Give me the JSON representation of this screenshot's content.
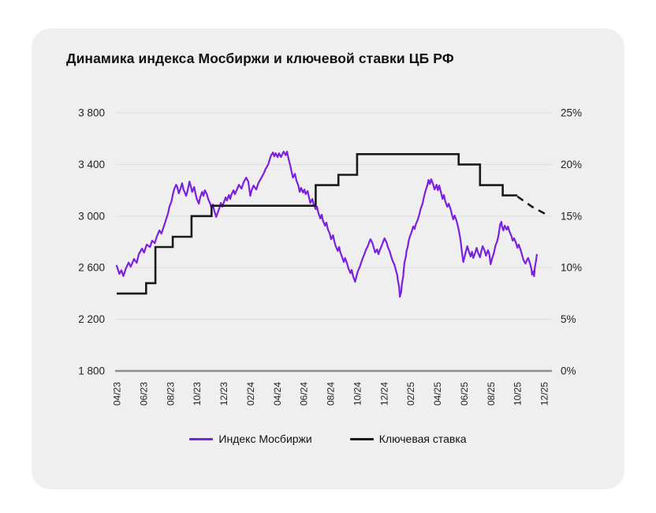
{
  "card": {
    "title": "Динамика индекса Мосбиржи и ключевой ставки ЦБ РФ"
  },
  "legend": {
    "items": [
      {
        "label": "Индекс Мосбиржи",
        "color": "#7B1FE0"
      },
      {
        "label": "Ключевая ставка",
        "color": "#1A1A1A"
      }
    ]
  },
  "colors": {
    "card_bg": "#EFEFEF",
    "grid": "#E0E0E0",
    "axis_line": "#8F8F8F",
    "tick_text": "#222222",
    "moex_line": "#7B1FE0",
    "rate_line": "#1A1A1A"
  },
  "chart_data": {
    "type": "line",
    "title": "Динамика индекса Мосбиржи и ключевой ставки ЦБ РФ",
    "grid": true,
    "legend_position": "bottom",
    "x_axis": {
      "unit": "months_from_2023-04",
      "range": [
        0,
        32
      ],
      "ticks": [
        {
          "m": 0,
          "label": "04/23"
        },
        {
          "m": 2,
          "label": "06/23"
        },
        {
          "m": 4,
          "label": "08/23"
        },
        {
          "m": 6,
          "label": "10/23"
        },
        {
          "m": 8,
          "label": "12/23"
        },
        {
          "m": 10,
          "label": "02/24"
        },
        {
          "m": 12,
          "label": "04/24"
        },
        {
          "m": 14,
          "label": "06/24"
        },
        {
          "m": 16,
          "label": "08/24"
        },
        {
          "m": 18,
          "label": "10/24"
        },
        {
          "m": 20,
          "label": "12/24"
        },
        {
          "m": 22,
          "label": "02/25"
        },
        {
          "m": 24,
          "label": "04/25"
        },
        {
          "m": 26,
          "label": "06/25"
        },
        {
          "m": 28,
          "label": "08/25"
        },
        {
          "m": 30,
          "label": "10/25"
        },
        {
          "m": 32,
          "label": "12/25"
        }
      ]
    },
    "left_axis": {
      "series": "Индекс Мосбиржи",
      "range": [
        1800,
        3800
      ],
      "ticks": [
        {
          "v": 3800,
          "label": "3 800"
        },
        {
          "v": 3400,
          "label": "3 400"
        },
        {
          "v": 3000,
          "label": "3 000"
        },
        {
          "v": 2600,
          "label": "2 600"
        },
        {
          "v": 2200,
          "label": "2 200"
        },
        {
          "v": 1800,
          "label": "1 800"
        }
      ]
    },
    "right_axis": {
      "series": "Ключевая ставка",
      "range": [
        0,
        25
      ],
      "ticks": [
        {
          "v": 25,
          "label": "25%"
        },
        {
          "v": 20,
          "label": "20%"
        },
        {
          "v": 15,
          "label": "15%"
        },
        {
          "v": 10,
          "label": "10%"
        },
        {
          "v": 5,
          "label": "5%"
        },
        {
          "v": 0,
          "label": "0%"
        }
      ]
    },
    "series": [
      {
        "name": "Индекс Мосбиржи",
        "axis": "left",
        "style": "line",
        "color": "#7B1FE0",
        "points": [
          [
            0,
            2615
          ],
          [
            0.2,
            2552
          ],
          [
            0.35,
            2580
          ],
          [
            0.5,
            2535
          ],
          [
            0.7,
            2598
          ],
          [
            0.9,
            2640
          ],
          [
            1.05,
            2608
          ],
          [
            1.3,
            2668
          ],
          [
            1.5,
            2638
          ],
          [
            1.65,
            2705
          ],
          [
            1.9,
            2748
          ],
          [
            2.05,
            2717
          ],
          [
            2.25,
            2779
          ],
          [
            2.5,
            2760
          ],
          [
            2.65,
            2809
          ],
          [
            2.85,
            2790
          ],
          [
            3,
            2840
          ],
          [
            3.2,
            2889
          ],
          [
            3.35,
            2864
          ],
          [
            3.55,
            2926
          ],
          [
            3.7,
            2975
          ],
          [
            3.85,
            3023
          ],
          [
            3.95,
            3072
          ],
          [
            4.1,
            3115
          ],
          [
            4.2,
            3164
          ],
          [
            4.3,
            3206
          ],
          [
            4.45,
            3243
          ],
          [
            4.55,
            3219
          ],
          [
            4.65,
            3176
          ],
          [
            4.8,
            3219
          ],
          [
            4.9,
            3255
          ],
          [
            5,
            3206
          ],
          [
            5.2,
            3157
          ],
          [
            5.3,
            3194
          ],
          [
            5.45,
            3268
          ],
          [
            5.55,
            3231
          ],
          [
            5.65,
            3188
          ],
          [
            5.8,
            3225
          ],
          [
            5.9,
            3176
          ],
          [
            6,
            3133
          ],
          [
            6.15,
            3096
          ],
          [
            6.25,
            3145
          ],
          [
            6.4,
            3188
          ],
          [
            6.5,
            3157
          ],
          [
            6.6,
            3200
          ],
          [
            6.75,
            3170
          ],
          [
            6.85,
            3133
          ],
          [
            7,
            3096
          ],
          [
            7.1,
            3060
          ],
          [
            7.2,
            3090
          ],
          [
            7.3,
            3041
          ],
          [
            7.45,
            2993
          ],
          [
            7.55,
            3023
          ],
          [
            7.7,
            3066
          ],
          [
            7.8,
            3102
          ],
          [
            7.9,
            3072
          ],
          [
            8.05,
            3115
          ],
          [
            8.15,
            3145
          ],
          [
            8.25,
            3121
          ],
          [
            8.4,
            3164
          ],
          [
            8.5,
            3133
          ],
          [
            8.6,
            3170
          ],
          [
            8.75,
            3200
          ],
          [
            8.85,
            3170
          ],
          [
            9,
            3206
          ],
          [
            9.15,
            3243
          ],
          [
            9.35,
            3212
          ],
          [
            9.5,
            3261
          ],
          [
            9.7,
            3298
          ],
          [
            9.85,
            3267
          ],
          [
            10,
            3157
          ],
          [
            10.1,
            3200
          ],
          [
            10.25,
            3237
          ],
          [
            10.45,
            3206
          ],
          [
            10.6,
            3255
          ],
          [
            10.8,
            3292
          ],
          [
            11,
            3328
          ],
          [
            11.15,
            3365
          ],
          [
            11.35,
            3402
          ],
          [
            11.45,
            3438
          ],
          [
            11.55,
            3469
          ],
          [
            11.7,
            3493
          ],
          [
            11.8,
            3463
          ],
          [
            11.9,
            3487
          ],
          [
            12.05,
            3457
          ],
          [
            12.15,
            3487
          ],
          [
            12.3,
            3457
          ],
          [
            12.4,
            3481
          ],
          [
            12.5,
            3500
          ],
          [
            12.65,
            3472
          ],
          [
            12.75,
            3500
          ],
          [
            12.85,
            3451
          ],
          [
            13,
            3390
          ],
          [
            13.1,
            3341
          ],
          [
            13.2,
            3298
          ],
          [
            13.35,
            3328
          ],
          [
            13.45,
            3279
          ],
          [
            13.6,
            3237
          ],
          [
            13.7,
            3188
          ],
          [
            13.8,
            3219
          ],
          [
            13.95,
            3182
          ],
          [
            14.05,
            3206
          ],
          [
            14.15,
            3170
          ],
          [
            14.3,
            3194
          ],
          [
            14.4,
            3145
          ],
          [
            14.5,
            3102
          ],
          [
            14.65,
            3133
          ],
          [
            14.75,
            3090
          ],
          [
            14.9,
            3054
          ],
          [
            15,
            3072
          ],
          [
            15.1,
            3023
          ],
          [
            15.25,
            2981
          ],
          [
            15.35,
            3011
          ],
          [
            15.45,
            2962
          ],
          [
            15.6,
            2926
          ],
          [
            15.7,
            2950
          ],
          [
            15.8,
            2901
          ],
          [
            15.95,
            2864
          ],
          [
            16.05,
            2821
          ],
          [
            16.2,
            2852
          ],
          [
            16.3,
            2803
          ],
          [
            16.4,
            2767
          ],
          [
            16.55,
            2730
          ],
          [
            16.65,
            2761
          ],
          [
            16.75,
            2718
          ],
          [
            16.9,
            2675
          ],
          [
            17,
            2644
          ],
          [
            17.1,
            2675
          ],
          [
            17.25,
            2632
          ],
          [
            17.35,
            2595
          ],
          [
            17.5,
            2558
          ],
          [
            17.6,
            2583
          ],
          [
            17.7,
            2534
          ],
          [
            17.85,
            2491
          ],
          [
            17.95,
            2534
          ],
          [
            18.05,
            2571
          ],
          [
            18.2,
            2607
          ],
          [
            18.3,
            2638
          ],
          [
            18.4,
            2668
          ],
          [
            18.55,
            2705
          ],
          [
            18.65,
            2736
          ],
          [
            18.8,
            2767
          ],
          [
            18.9,
            2797
          ],
          [
            19,
            2821
          ],
          [
            19.15,
            2791
          ],
          [
            19.25,
            2754
          ],
          [
            19.35,
            2718
          ],
          [
            19.5,
            2742
          ],
          [
            19.6,
            2705
          ],
          [
            19.7,
            2736
          ],
          [
            19.85,
            2773
          ],
          [
            19.95,
            2803
          ],
          [
            20.05,
            2828
          ],
          [
            20.2,
            2797
          ],
          [
            20.3,
            2760
          ],
          [
            20.45,
            2724
          ],
          [
            20.55,
            2687
          ],
          [
            20.65,
            2656
          ],
          [
            20.8,
            2620
          ],
          [
            20.9,
            2583
          ],
          [
            21,
            2546
          ],
          [
            21.05,
            2503
          ],
          [
            21.15,
            2445
          ],
          [
            21.2,
            2375
          ],
          [
            21.3,
            2411
          ],
          [
            21.35,
            2472
          ],
          [
            21.45,
            2534
          ],
          [
            21.5,
            2595
          ],
          [
            21.55,
            2644
          ],
          [
            21.65,
            2687
          ],
          [
            21.7,
            2730
          ],
          [
            21.8,
            2767
          ],
          [
            21.85,
            2803
          ],
          [
            21.95,
            2840
          ],
          [
            22.1,
            2883
          ],
          [
            22.2,
            2920
          ],
          [
            22.3,
            2901
          ],
          [
            22.4,
            2938
          ],
          [
            22.55,
            2975
          ],
          [
            22.65,
            3011
          ],
          [
            22.75,
            3054
          ],
          [
            22.9,
            3096
          ],
          [
            23,
            3145
          ],
          [
            23.1,
            3188
          ],
          [
            23.25,
            3237
          ],
          [
            23.35,
            3280
          ],
          [
            23.45,
            3249
          ],
          [
            23.55,
            3286
          ],
          [
            23.7,
            3243
          ],
          [
            23.8,
            3206
          ],
          [
            23.95,
            3243
          ],
          [
            24.05,
            3200
          ],
          [
            24.15,
            3237
          ],
          [
            24.3,
            3176
          ],
          [
            24.4,
            3133
          ],
          [
            24.5,
            3164
          ],
          [
            24.6,
            3115
          ],
          [
            24.75,
            3072
          ],
          [
            24.85,
            3096
          ],
          [
            25,
            3054
          ],
          [
            25.1,
            3011
          ],
          [
            25.2,
            2975
          ],
          [
            25.3,
            3005
          ],
          [
            25.45,
            2962
          ],
          [
            25.55,
            2919
          ],
          [
            25.65,
            2871
          ],
          [
            25.75,
            2809
          ],
          [
            25.85,
            2718
          ],
          [
            25.95,
            2644
          ],
          [
            26.05,
            2687
          ],
          [
            26.15,
            2730
          ],
          [
            26.25,
            2767
          ],
          [
            26.35,
            2730
          ],
          [
            26.5,
            2687
          ],
          [
            26.6,
            2724
          ],
          [
            26.7,
            2675
          ],
          [
            26.85,
            2718
          ],
          [
            26.95,
            2754
          ],
          [
            27.05,
            2718
          ],
          [
            27.2,
            2681
          ],
          [
            27.3,
            2730
          ],
          [
            27.4,
            2767
          ],
          [
            27.55,
            2730
          ],
          [
            27.65,
            2693
          ],
          [
            27.8,
            2736
          ],
          [
            27.9,
            2705
          ],
          [
            28,
            2626
          ],
          [
            28.1,
            2669
          ],
          [
            28.25,
            2718
          ],
          [
            28.35,
            2767
          ],
          [
            28.5,
            2809
          ],
          [
            28.6,
            2858
          ],
          [
            28.7,
            2932
          ],
          [
            28.8,
            2956
          ],
          [
            28.85,
            2919
          ],
          [
            28.95,
            2889
          ],
          [
            29.05,
            2926
          ],
          [
            29.2,
            2895
          ],
          [
            29.3,
            2919
          ],
          [
            29.4,
            2883
          ],
          [
            29.55,
            2846
          ],
          [
            29.65,
            2809
          ],
          [
            29.75,
            2828
          ],
          [
            29.9,
            2791
          ],
          [
            30,
            2754
          ],
          [
            30.1,
            2779
          ],
          [
            30.25,
            2736
          ],
          [
            30.35,
            2699
          ],
          [
            30.45,
            2662
          ],
          [
            30.6,
            2632
          ],
          [
            30.7,
            2656
          ],
          [
            30.8,
            2675
          ],
          [
            30.95,
            2632
          ],
          [
            31.05,
            2589
          ],
          [
            31.1,
            2546
          ],
          [
            31.2,
            2571
          ],
          [
            31.25,
            2534
          ],
          [
            31.3,
            2595
          ],
          [
            31.4,
            2656
          ],
          [
            31.45,
            2700
          ]
        ]
      },
      {
        "name": "Ключевая ставка",
        "axis": "right",
        "style": "step",
        "color": "#1A1A1A",
        "rate_changes_pct": [
          [
            0,
            7.5
          ],
          [
            2.2,
            8.5
          ],
          [
            2.9,
            12
          ],
          [
            4.2,
            13
          ],
          [
            5.6,
            15
          ],
          [
            7.1,
            16
          ],
          [
            14.9,
            18
          ],
          [
            16.6,
            19
          ],
          [
            18,
            21
          ],
          [
            25.6,
            20
          ],
          [
            27.2,
            18
          ],
          [
            28.9,
            17
          ]
        ],
        "solid_end_m": 30.0,
        "forecast_dashed_pct": [
          [
            30.0,
            16.9
          ],
          [
            31.1,
            15.9
          ],
          [
            32.4,
            15.0
          ]
        ]
      }
    ]
  }
}
